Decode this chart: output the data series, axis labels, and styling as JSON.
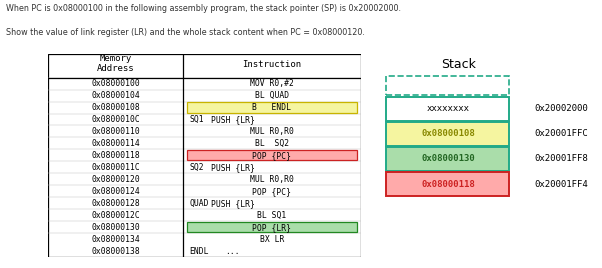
{
  "title_line1": "When PC is 0x08000100 in the following assembly program, the stack pointer (SP) is 0x20002000.",
  "title_line2": "Show the value of link register (LR) and the whole stack content when PC = 0x08000120.",
  "table_rows": [
    [
      "0x08000100",
      "MOV R0,#2",
      "",
      ""
    ],
    [
      "0x08000104",
      "BL QUAD",
      "",
      ""
    ],
    [
      "0x08000108",
      "B   ENDL",
      "",
      "yellow"
    ],
    [
      "0x0800010C",
      "PUSH {LR}",
      "SQ1",
      ""
    ],
    [
      "0x08000110",
      "MUL R0,R0",
      "",
      ""
    ],
    [
      "0x08000114",
      "BL  SQ2",
      "",
      ""
    ],
    [
      "0x08000118",
      "POP {PC}",
      "",
      "red"
    ],
    [
      "0x0800011C",
      "PUSH {LR}",
      "SQ2",
      ""
    ],
    [
      "0x08000120",
      "MUL R0,R0",
      "",
      ""
    ],
    [
      "0x08000124",
      "POP {PC}",
      "",
      ""
    ],
    [
      "0x08000128",
      "PUSH {LR}",
      "QUAD",
      ""
    ],
    [
      "0x0800012C",
      "BL SQ1",
      "",
      ""
    ],
    [
      "0x08000130",
      "POP {LR}",
      "",
      "green"
    ],
    [
      "0x08000134",
      "BX LR",
      "",
      ""
    ],
    [
      "0x08000138",
      "...",
      "ENDL",
      ""
    ]
  ],
  "highlight_yellow_bg": "#f5f5a0",
  "highlight_yellow_ec": "#c8b400",
  "highlight_red_bg": "#ffaaaa",
  "highlight_red_ec": "#cc2222",
  "highlight_green_bg": "#aaddaa",
  "highlight_green_ec": "#228822",
  "stack_title": "Stack",
  "stack_rows": [
    {
      "value": "xxxxxxxx",
      "addr": "0x20002000",
      "bg": "white",
      "fg": "black",
      "border": "#22aa88"
    },
    {
      "value": "0x08000108",
      "addr": "0x20001FFC",
      "bg": "#f5f5a0",
      "fg": "#888800",
      "border": "#22aa88"
    },
    {
      "value": "0x08000130",
      "addr": "0x20001FF8",
      "bg": "#aaddaa",
      "fg": "#226622",
      "border": "#22aa88"
    },
    {
      "value": "0x08000118",
      "addr": "0x20001FF4",
      "bg": "#ffaaaa",
      "fg": "#cc2222",
      "border": "#cc2222"
    }
  ],
  "dash_border": "#22aa88"
}
